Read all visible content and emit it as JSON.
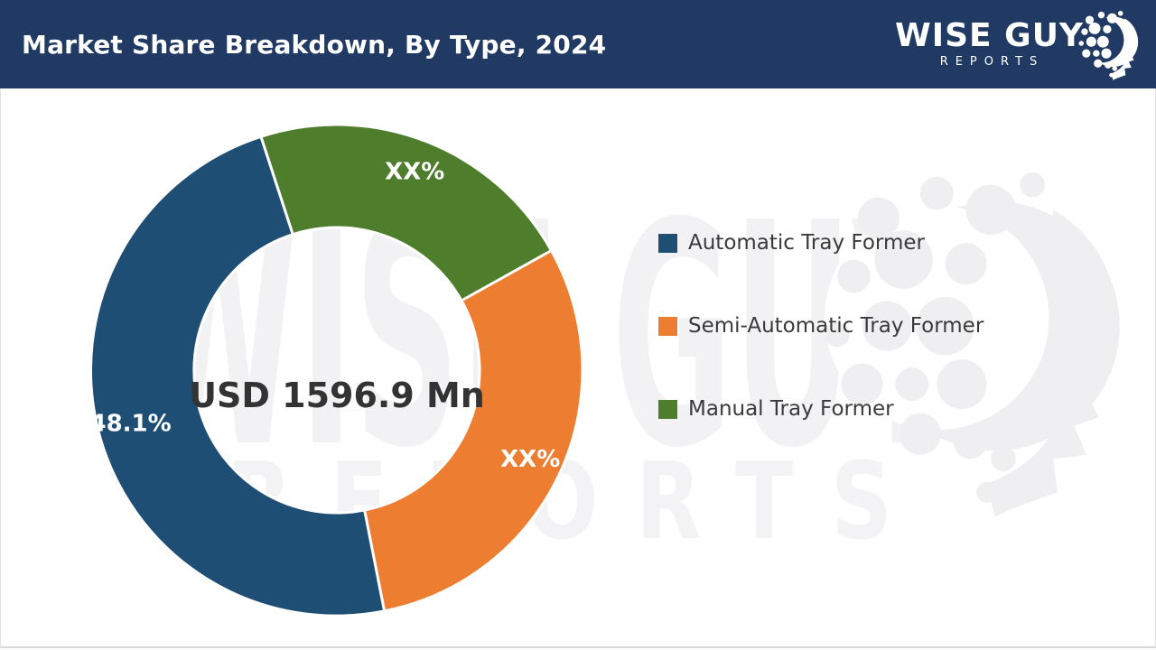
{
  "header": {
    "title": "Market Share Breakdown, By Type, 2024",
    "bg_color": "#213A64",
    "logo": {
      "line1": "WISE GUY",
      "line2": "REPORTS"
    }
  },
  "watermark": {
    "line1": "WISE GUY",
    "line2": "REPORTS"
  },
  "chart_data": {
    "type": "pie",
    "donut": true,
    "title": "Market Share Breakdown, By Type, 2024",
    "center_label": "USD 1596.9 Mn",
    "start_angle_deg": -18,
    "legend_position": "right",
    "slices": [
      {
        "name": "Manual Tray Former",
        "label": "XX%",
        "value_pct": 21.9,
        "color": "#4E7D2B"
      },
      {
        "name": "Semi-Automatic Tray Former",
        "label": "XX%",
        "value_pct": 30.0,
        "color": "#ED7D31"
      },
      {
        "name": "Automatic Tray Former",
        "label": "48.1%",
        "value_pct": 48.1,
        "color": "#1F4E74"
      }
    ],
    "legend": [
      {
        "label": "Automatic Tray Former",
        "color": "#1F4E74"
      },
      {
        "label": "Semi-Automatic Tray Former",
        "color": "#ED7D31"
      },
      {
        "label": "Manual Tray Former",
        "color": "#4E7D2B"
      }
    ],
    "colors": {
      "label_text": "#ffffff",
      "center_text": "#333333",
      "legend_text": "#3a3a3a"
    }
  }
}
